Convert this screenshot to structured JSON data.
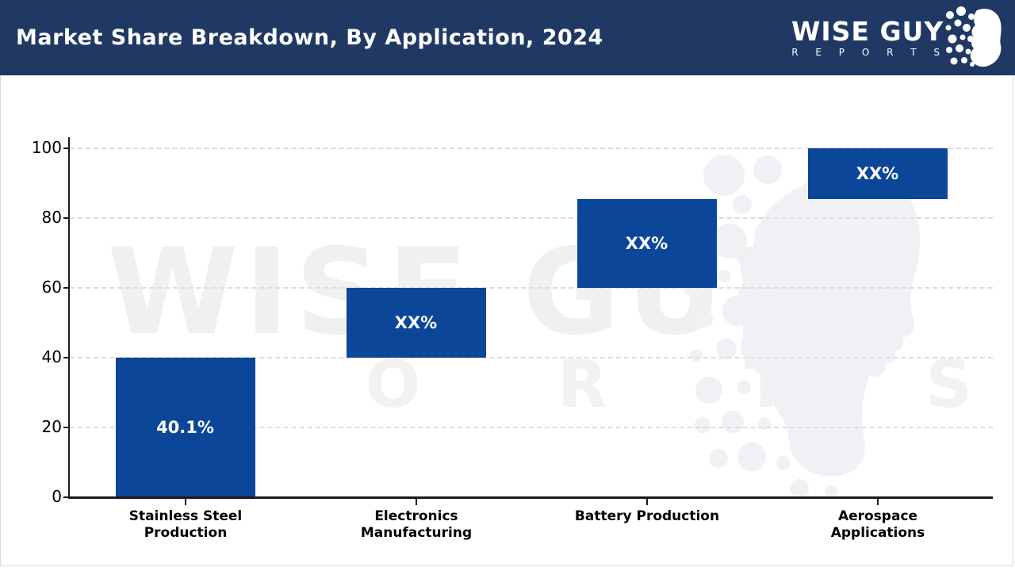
{
  "header": {
    "title": "Market Share Breakdown, By Application, 2024",
    "logo": {
      "brand_line1": "WISE GUY",
      "brand_line2": "R E P O R T S"
    }
  },
  "watermark": {
    "line1": "WISE GUY",
    "line2": "P O R T S"
  },
  "chart_data": {
    "type": "bar",
    "subtype": "floating-waterfall",
    "title": "Market Share Breakdown, By Application, 2024",
    "categories": [
      "Stainless Steel Production",
      "Electronics Manufacturing",
      "Battery Production",
      "Aerospace Applications"
    ],
    "category_lines": [
      [
        "Stainless Steel",
        "Production"
      ],
      [
        "Electronics",
        "Manufacturing"
      ],
      [
        "Battery Production"
      ],
      [
        "Aerospace",
        "Applications"
      ]
    ],
    "segments": [
      {
        "category": "Stainless Steel Production",
        "start": 0,
        "end": 40.1,
        "label": "40.1%"
      },
      {
        "category": "Electronics Manufacturing",
        "start": 40.1,
        "end": 60,
        "label": "XX%"
      },
      {
        "category": "Battery Production",
        "start": 60,
        "end": 85.5,
        "label": "XX%"
      },
      {
        "category": "Aerospace Applications",
        "start": 85.5,
        "end": 100,
        "label": "XX%"
      }
    ],
    "ylim": [
      0,
      100
    ],
    "yticks": [
      "0",
      "20",
      "40",
      "60",
      "80",
      "100"
    ],
    "grid": "dashed-horizontal",
    "legend": "none",
    "xlabel": "",
    "ylabel": "",
    "bar_color": "#0b4699",
    "bar_label_color": "#ffffff"
  },
  "colors": {
    "header_bg": "#203864",
    "bar": "#0b4699",
    "grid": "#dcdcdc",
    "axis": "#1a1a1a",
    "watermark": "#f0f1f4",
    "panel_border": "#d9d9d9"
  }
}
